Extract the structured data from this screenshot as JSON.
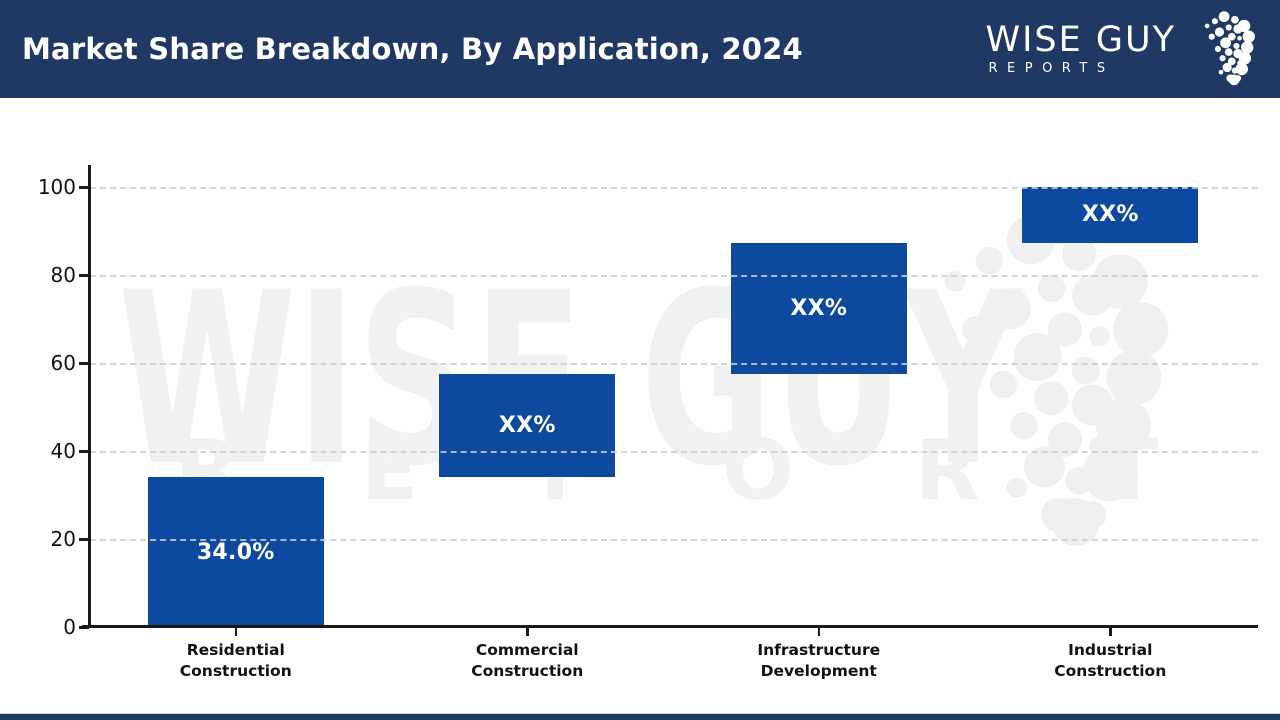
{
  "colors": {
    "header_bg": "#1F3864",
    "footer_bg": "#1F3864",
    "bar": "#0D4A9F",
    "gridline": "#CDCDCD",
    "axis": "#1A1A1A",
    "watermark": "#F1F1F1",
    "title_text": "#FFFFFF",
    "tick_text": "#111111"
  },
  "header": {
    "title": "Market Share Breakdown, By Application, 2024",
    "logo": {
      "line1": "WISE GUY",
      "line2": "REPORTS"
    }
  },
  "watermark": {
    "line1": "WISE GUY",
    "line2": "R E P O R T S",
    "head_icon": "dotted-face-profile"
  },
  "chart_data": {
    "type": "bar",
    "subtype": "waterfall-floating-segments",
    "title": "Market Share Breakdown, By Application, 2024",
    "categories": [
      "Residential\nConstruction",
      "Commercial\nConstruction",
      "Infrastructure\nDevelopment",
      "Industrial\nConstruction"
    ],
    "segments": [
      {
        "category": "Residential Construction",
        "start": 0,
        "end": 34.0,
        "value": 34.0,
        "label": "34.0%"
      },
      {
        "category": "Commercial Construction",
        "start": 34.0,
        "end": 57.6,
        "value": 23.6,
        "label": "XX%"
      },
      {
        "category": "Infrastructure Development",
        "start": 57.6,
        "end": 87.3,
        "value": 29.7,
        "label": "XX%"
      },
      {
        "category": "Industrial Construction",
        "start": 87.3,
        "end": 100.0,
        "value": 12.7,
        "label": "XX%"
      }
    ],
    "xlabel": "",
    "ylabel": "",
    "ylim": [
      0,
      105
    ],
    "yticks": [
      0,
      20,
      40,
      60,
      80,
      100
    ],
    "grid": "horizontal-dashed-over-bars",
    "legend": false
  }
}
